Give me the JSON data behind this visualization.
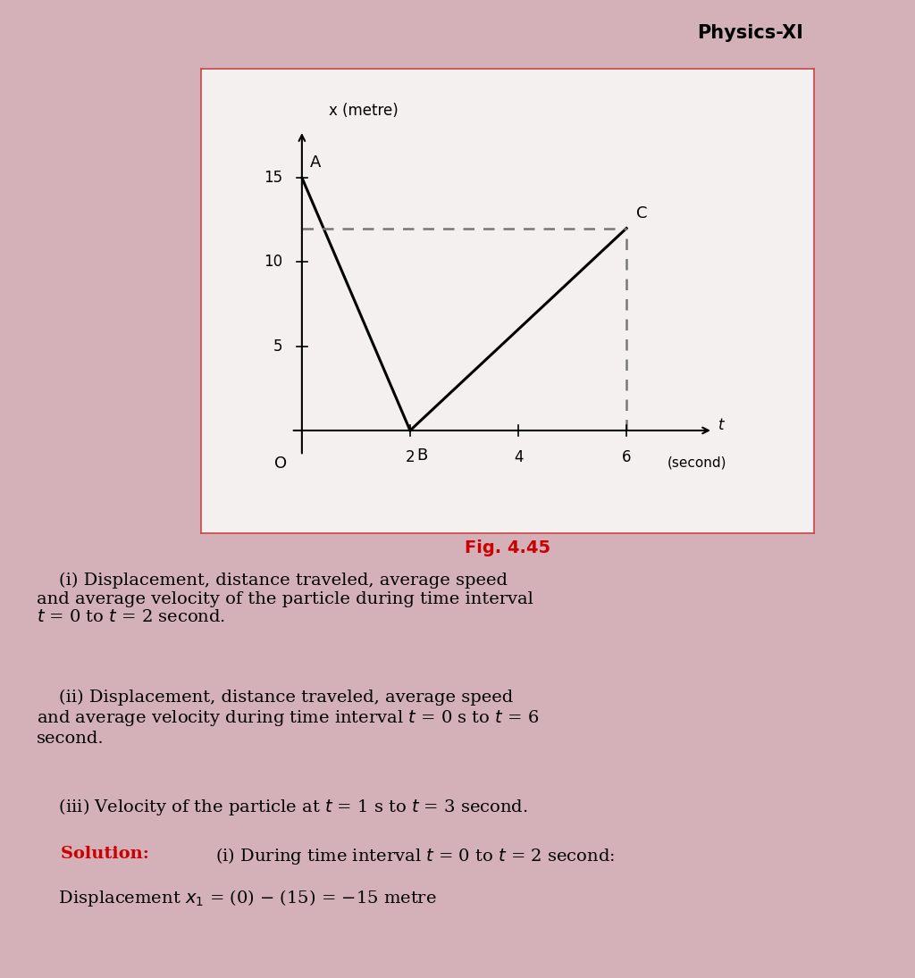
{
  "title": "Fig. 4.45",
  "xlabel": "t",
  "xlabel_unit": "(second)",
  "ylabel": "x (metre)",
  "A": [
    0,
    15
  ],
  "B": [
    2,
    0
  ],
  "C": [
    6,
    12
  ],
  "yticks": [
    5,
    10,
    15
  ],
  "xticks": [
    2,
    4,
    6
  ],
  "xlim": [
    -0.5,
    8.0
  ],
  "ylim": [
    -2.5,
    19.0
  ],
  "header_text": "Physics-XI",
  "fig_caption": "Fig. 4.45",
  "fig_caption_color": "#cc0000",
  "outer_bg": "#d4b0b8",
  "chart_box_bg": "#f5f0f0",
  "chart_plot_bg": "#f0e8e8",
  "line_color": "#000000",
  "dash_color": "#777777",
  "linewidth": 2.2,
  "dashed_linewidth": 1.8,
  "body_text_1": "    (i) Displacement, distance traveled, average speed\nand average velocity of the particle during time interval\n$t$ = 0 to $t$ = 2 second.",
  "body_text_2": "    (ii) Displacement, distance traveled, average speed\nand average velocity during time interval $t$ = 0 s to $t$ = 6\nsecond.",
  "body_text_3": "    (iii) Velocity of the particle at $t$ = 1 s to $t$ = 3 second.",
  "solution_prefix": "    Solution:",
  "solution_text1": "(i) During time interval $t$ = 0 to $t$ = 2 second:",
  "solution_text2": "    Displacement $x_1$ = (0) − (15) = −15 metre"
}
